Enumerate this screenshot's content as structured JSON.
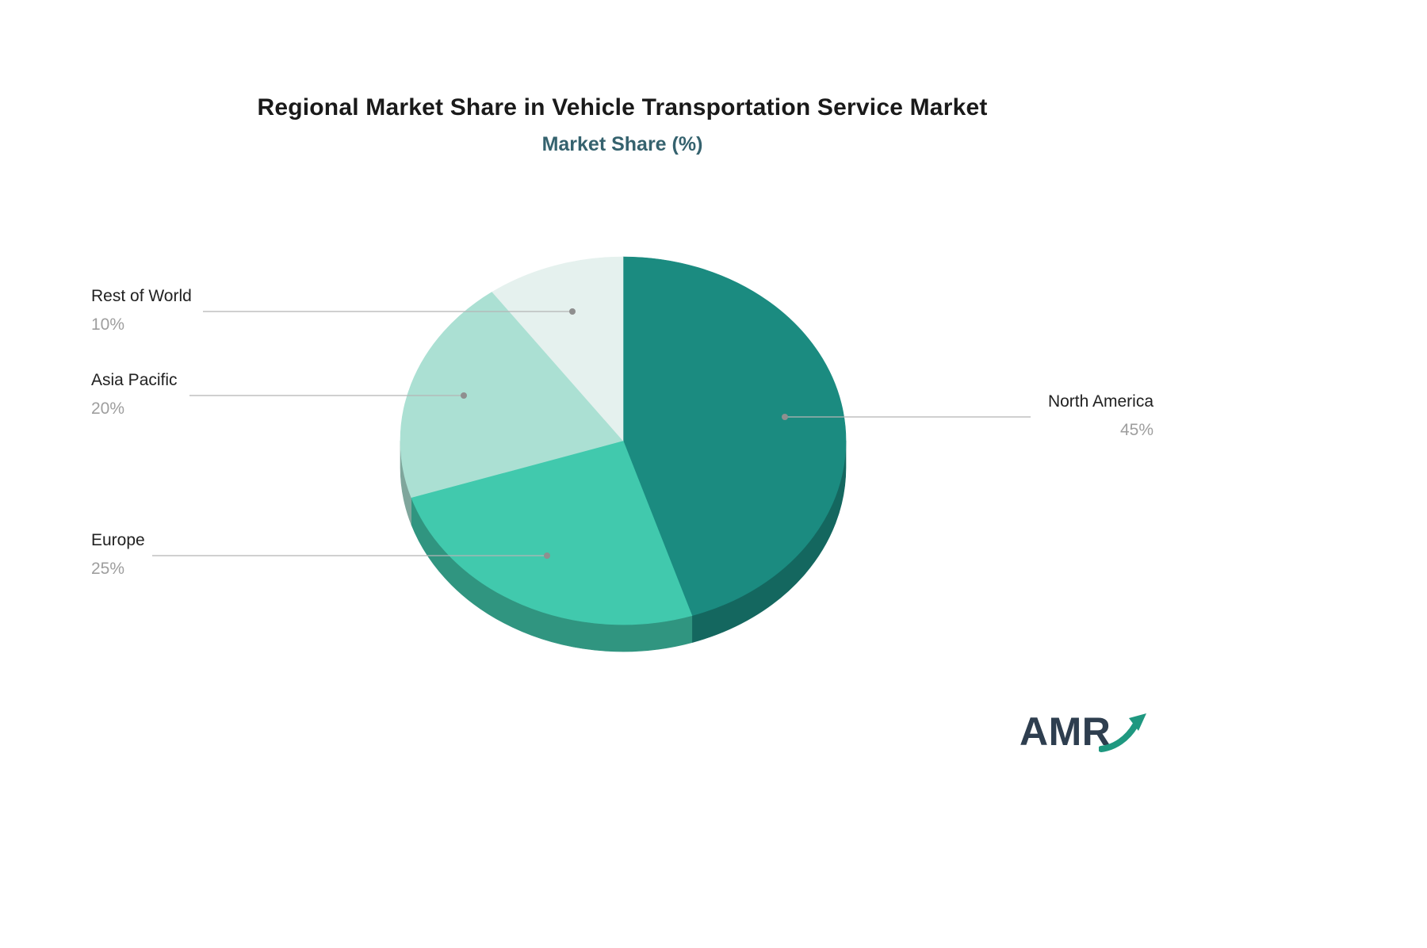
{
  "chart_data": {
    "type": "pie",
    "style_3d": true,
    "title": "Regional Market Share in Vehicle Transportation Service Market",
    "subtitle": "Market Share (%)",
    "unit": "%",
    "direction": "clockwise",
    "start_angle_deg": -90,
    "legend_position": "none",
    "label_style": "outside-with-leader-lines",
    "categories": [
      "North America",
      "Europe",
      "Asia Pacific",
      "Rest of World"
    ],
    "values": [
      45,
      25,
      20,
      10
    ],
    "slices": [
      {
        "label": "North America",
        "value": 45,
        "display_value": "45%",
        "color": "#1b8b80"
      },
      {
        "label": "Europe",
        "value": 25,
        "display_value": "25%",
        "color": "#41c9ad"
      },
      {
        "label": "Asia Pacific",
        "value": 20,
        "display_value": "20%",
        "color": "#abe0d3"
      },
      {
        "label": "Rest of World",
        "value": 10,
        "display_value": "10%",
        "color": "#e5f1ee"
      }
    ],
    "leader_line_color": "#b5b5b5",
    "leader_dot_color": "#8f8f8f",
    "label_name_color": "#212121",
    "label_value_color": "#9e9e9e"
  },
  "branding": {
    "logo_text": "AMR",
    "logo_color": "#2e3e4f",
    "accent_color": "#1f9880"
  }
}
